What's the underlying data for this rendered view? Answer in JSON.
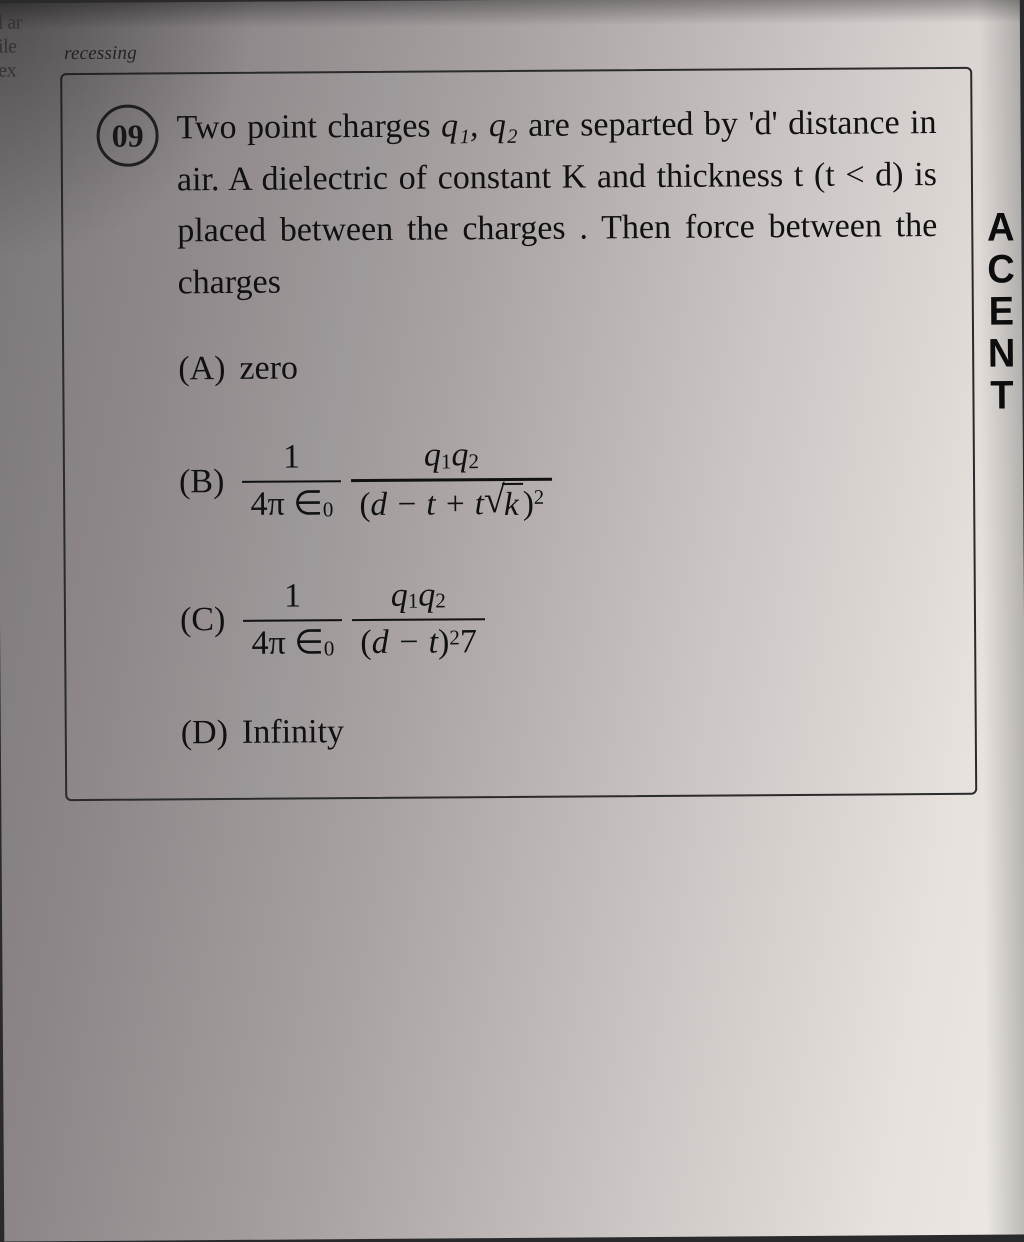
{
  "margin_fragments": [
    "l ar",
    "ile",
    "ex"
  ],
  "top_label": "recessing",
  "question_number": "09",
  "stem_parts": {
    "p1": "Two point charges ",
    "q1q2": "q₁, q₂",
    "p2": " are separted by 'd' distance in air. A dielectric of constant K and thickness t (t < d) is placed between the charges . Then force between the charges"
  },
  "options": {
    "A": {
      "label": "(A)",
      "text": "zero"
    },
    "B": {
      "label": "(B)",
      "frac1_num": "1",
      "frac1_den_pre": "4π ∈",
      "frac1_den_sub": "0",
      "frac2_num_pre": "q",
      "frac2_num_s1": "1",
      "frac2_num_mid": "q",
      "frac2_num_s2": "2",
      "den_open": "(",
      "den_a": "d − t + t",
      "sqrt_arg": "k",
      "den_close": ")",
      "den_pow": "2"
    },
    "C": {
      "label": "(C)",
      "frac1_num": "1",
      "frac1_den_pre": "4π ∈",
      "frac1_den_sub": "0",
      "frac2_num_pre": "q",
      "frac2_num_s1": "1",
      "frac2_num_mid": "q",
      "frac2_num_s2": "2",
      "den_open": "(",
      "den_a": "d − t",
      "den_close": ")",
      "den_pow": "2",
      "trail": " 7"
    },
    "D": {
      "label": "(D)",
      "text": "Infinity"
    }
  },
  "side_letters": [
    "A",
    "C",
    "E",
    "N",
    "T"
  ],
  "colors": {
    "text": "#111111",
    "border": "#2b2b2b",
    "side": "#0e0e0e"
  }
}
